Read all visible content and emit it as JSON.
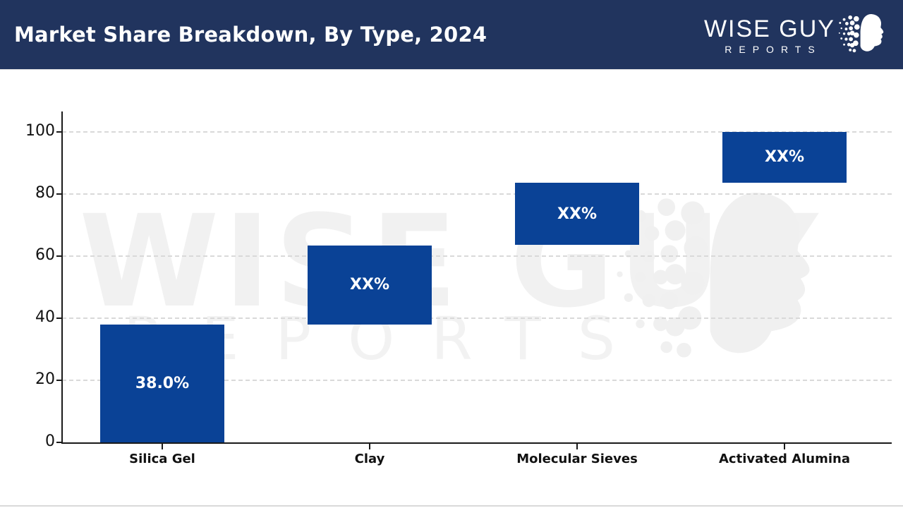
{
  "header": {
    "title": "Market Share Breakdown, By Type, 2024",
    "bg_color": "#21345e",
    "logo": {
      "line1": "WISE GUY",
      "line2": "REPORTS"
    }
  },
  "watermark": {
    "line1": "WISE GUY",
    "line2": "REPORTS"
  },
  "chart_data": {
    "type": "bar",
    "subtype": "waterfall",
    "title": "Market Share Breakdown, By Type, 2024",
    "categories": [
      "Silica Gel",
      "Clay",
      "Molecular Sieves",
      "Activated Alumina"
    ],
    "segments": [
      {
        "category": "Silica Gel",
        "start": 0.0,
        "end": 38.0,
        "label": "38.0%"
      },
      {
        "category": "Clay",
        "start": 38.0,
        "end": 63.3,
        "label": "XX%"
      },
      {
        "category": "Molecular Sieves",
        "start": 63.5,
        "end": 83.6,
        "label": "XX%"
      },
      {
        "category": "Activated Alumina",
        "start": 83.6,
        "end": 100.0,
        "label": "XX%"
      }
    ],
    "bar_color": "#0a4296",
    "bar_label_color": "#ffffff",
    "ylim": [
      0,
      100
    ],
    "yticks": [
      0,
      20,
      40,
      60,
      80,
      100
    ],
    "grid": {
      "axis": "y",
      "style": "dashed",
      "color": "#d9d9d9"
    },
    "axis_color": "#1a1a1a",
    "legend": "none"
  }
}
